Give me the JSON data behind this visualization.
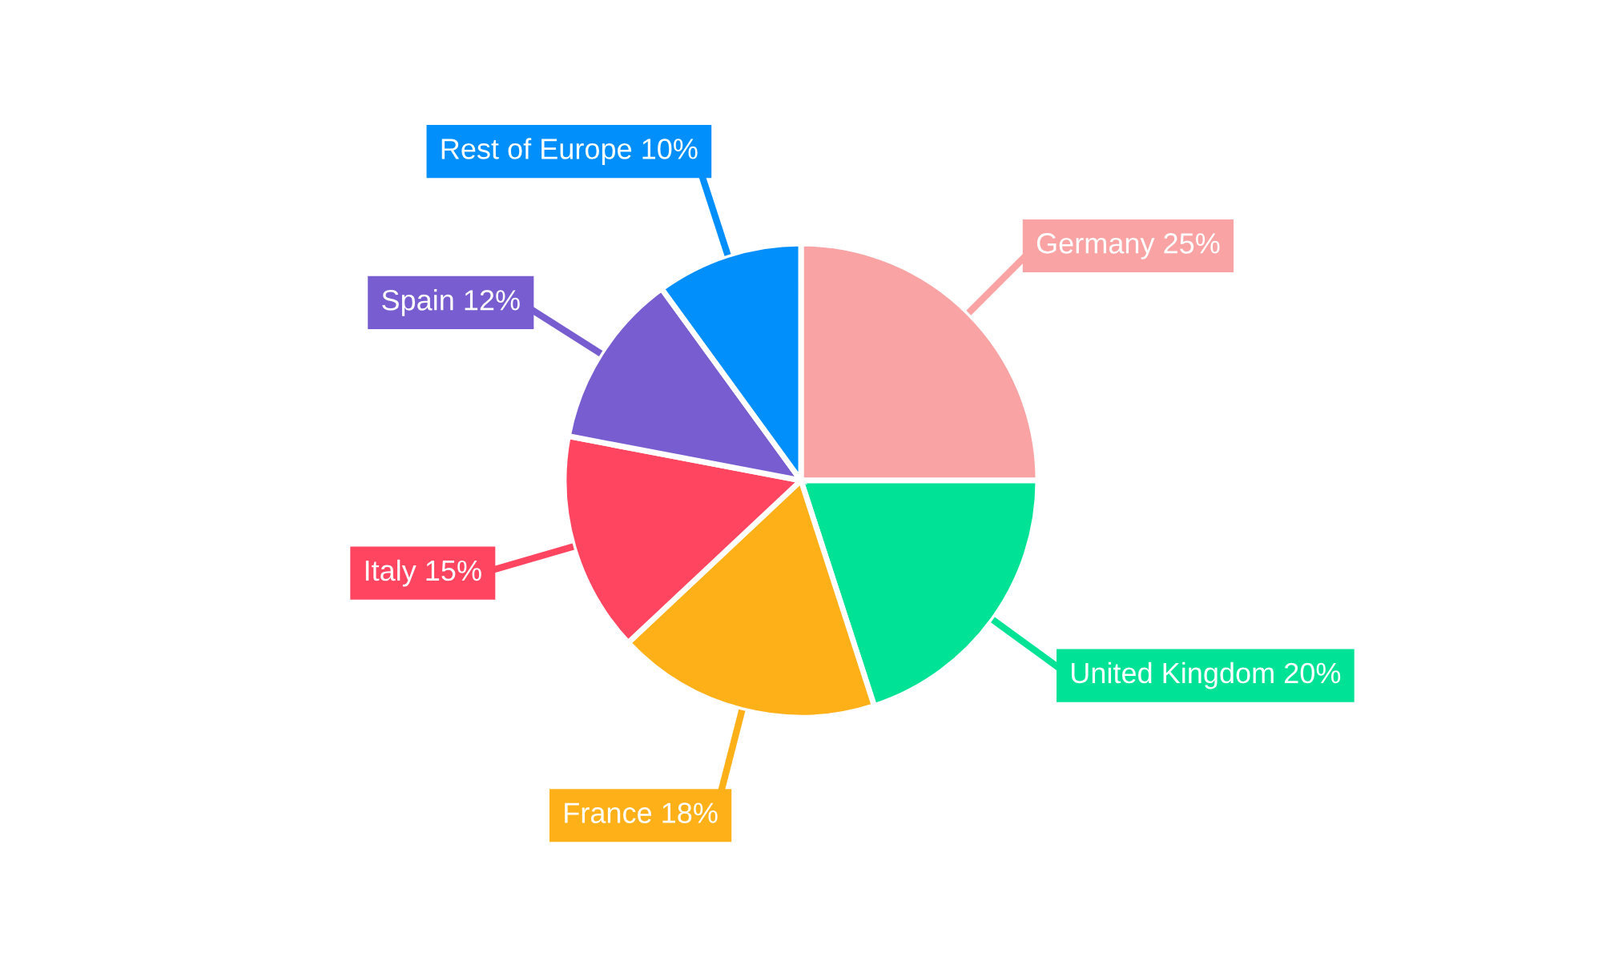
{
  "chart_data": {
    "type": "pie",
    "categories": [
      "Germany",
      "United Kingdom",
      "France",
      "Italy",
      "Spain",
      "Rest of Europe"
    ],
    "values": [
      25,
      20,
      18,
      15,
      12,
      10
    ],
    "value_labels": [
      "25%",
      "20%",
      "18%",
      "15%",
      "12%",
      "10%"
    ],
    "colors": [
      "#f9a3a4",
      "#00e396",
      "#feb019",
      "#ff4560",
      "#775dd0",
      "#008ffb"
    ],
    "legend": false
  }
}
